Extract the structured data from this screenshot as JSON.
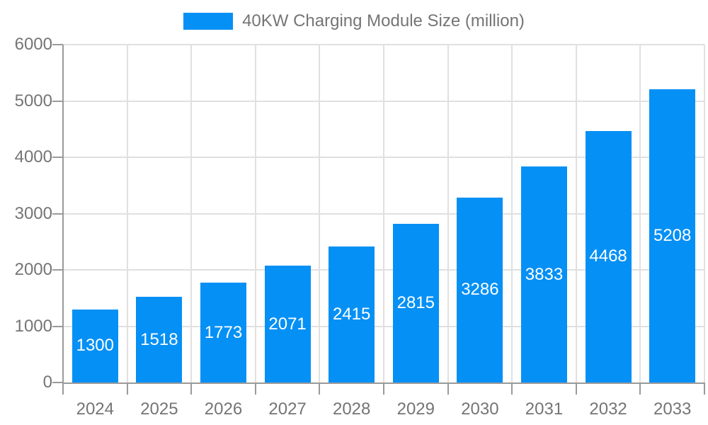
{
  "chart_data": {
    "type": "bar",
    "title": "",
    "categories": [
      "2024",
      "2025",
      "2026",
      "2027",
      "2028",
      "2029",
      "2030",
      "2031",
      "2032",
      "2033"
    ],
    "series": [
      {
        "name": "40KW Charging Module Size (million)",
        "values": [
          1300,
          1518,
          1773,
          2071,
          2415,
          2815,
          3286,
          3833,
          4468,
          5208
        ]
      }
    ],
    "xlabel": "",
    "ylabel": "",
    "ylim": [
      0,
      6000
    ],
    "yticks": [
      0,
      1000,
      2000,
      3000,
      4000,
      5000,
      6000
    ],
    "grid": true,
    "legend_position": "top",
    "value_labels": "inside-center"
  },
  "colors": {
    "bar": "#0590F5",
    "axis": "#9a9a9a",
    "grid": "#e0e0e0",
    "text": "#757575",
    "value_label": "#ffffff",
    "background": "#ffffff"
  }
}
